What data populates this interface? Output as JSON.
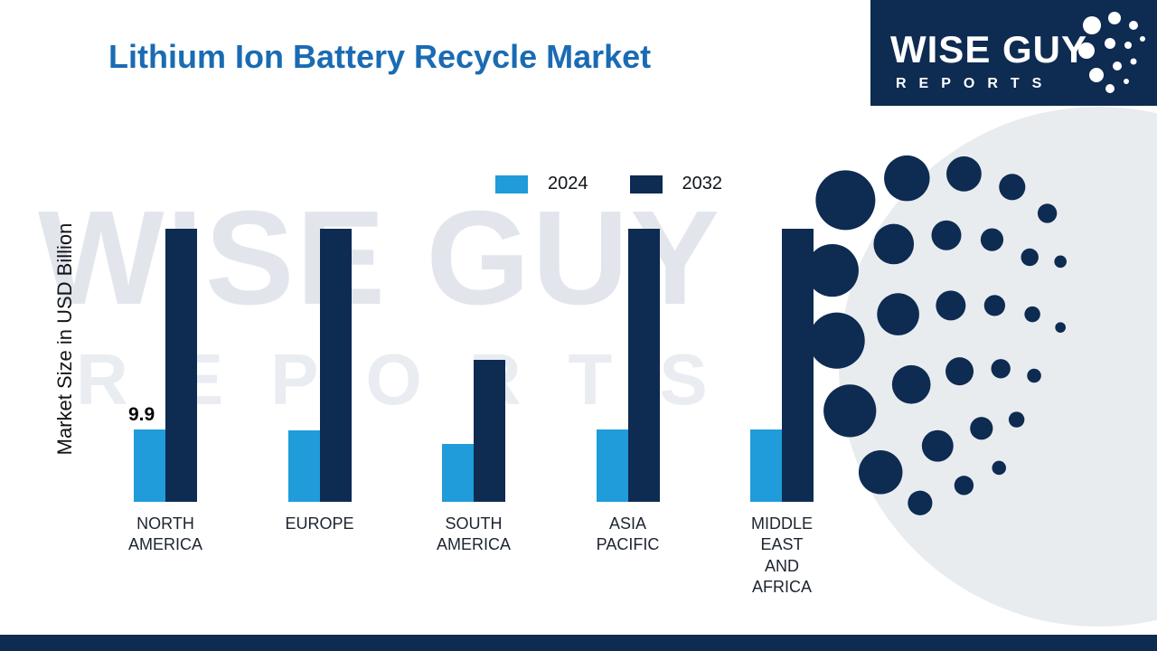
{
  "title": "Lithium Ion Battery Recycle Market",
  "logo": {
    "line1": "WISE GUY",
    "line2": "REPORTS"
  },
  "watermark": {
    "line1": "WISE GUY",
    "line2": "REPORTS"
  },
  "colors": {
    "title_blue": "#1a6bb3",
    "navy": "#0e2b52",
    "light_blue": "#1f9cd9",
    "circle_gray": "#e9ecef",
    "watermark_gray": "#e2e6ec"
  },
  "chart_data": {
    "type": "bar",
    "title": "Lithium Ion Battery Recycle Market",
    "ylabel": "Market Size in USD Billion",
    "xlabel": "",
    "ylim": [
      0,
      40
    ],
    "grid": false,
    "legend_position": "top",
    "categories": [
      "NORTH AMERICA",
      "EUROPE",
      "SOUTH AMERICA",
      "ASIA PACIFIC",
      "MIDDLE EAST AND AFRICA"
    ],
    "series": [
      {
        "name": "2024",
        "color": "#1f9cd9",
        "values": [
          9.9,
          9.8,
          7.9,
          9.9,
          9.9
        ]
      },
      {
        "name": "2032",
        "color": "#0e2b52",
        "values": [
          37.5,
          37.5,
          19.5,
          37.5,
          37.5
        ]
      }
    ],
    "data_labels": [
      {
        "series": "2024",
        "category": "NORTH AMERICA",
        "text": "9.9"
      }
    ]
  }
}
